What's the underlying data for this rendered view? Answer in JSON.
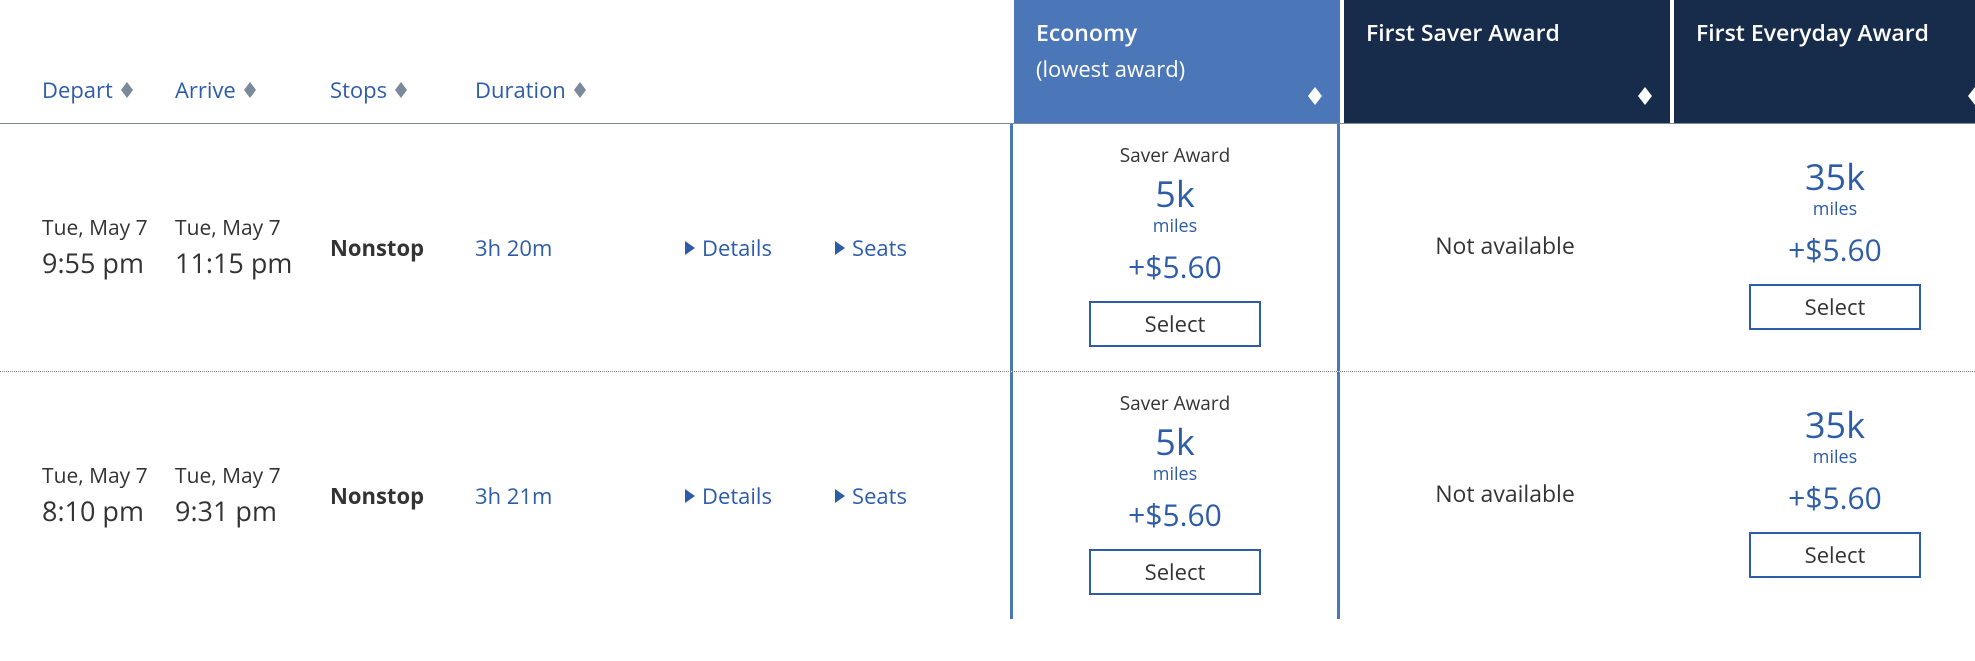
{
  "colors": {
    "link_blue": "#2d5ca8",
    "economy_bg": "#4b77b9",
    "first_bg": "#172c4b",
    "sort_arrow": "#7b8a9a",
    "fare_sort_arrow": "#ffffff",
    "text": "#333333"
  },
  "columns": {
    "depart": "Depart",
    "arrive": "Arrive",
    "stops": "Stops",
    "duration": "Duration"
  },
  "fare_heads": [
    {
      "title": "Economy",
      "subtitle": "(lowest award)",
      "bg": "#4b77b9"
    },
    {
      "title": "First Saver Award",
      "subtitle": "",
      "bg": "#172c4b"
    },
    {
      "title": "First Everyday Award",
      "subtitle": "",
      "bg": "#172c4b"
    }
  ],
  "links": {
    "details": "Details",
    "seats": "Seats"
  },
  "select_label": "Select",
  "not_available": "Not available",
  "flights": [
    {
      "depart_date": "Tue, May 7",
      "depart_time": "9:55 pm",
      "arrive_date": "Tue, May 7",
      "arrive_time": "11:15 pm",
      "stops": "Nonstop",
      "duration": "3h 20m",
      "fares": [
        {
          "tag": "Saver Award",
          "miles": "5k",
          "miles_label": "miles",
          "fee": "+$5.60",
          "available": true
        },
        {
          "available": false
        },
        {
          "tag": "",
          "miles": "35k",
          "miles_label": "miles",
          "fee": "+$5.60",
          "available": true
        }
      ]
    },
    {
      "depart_date": "Tue, May 7",
      "depart_time": "8:10 pm",
      "arrive_date": "Tue, May 7",
      "arrive_time": "9:31 pm",
      "stops": "Nonstop",
      "duration": "3h 21m",
      "fares": [
        {
          "tag": "Saver Award",
          "miles": "5k",
          "miles_label": "miles",
          "fee": "+$5.60",
          "available": true
        },
        {
          "available": false
        },
        {
          "tag": "",
          "miles": "35k",
          "miles_label": "miles",
          "fee": "+$5.60",
          "available": true
        }
      ]
    }
  ]
}
